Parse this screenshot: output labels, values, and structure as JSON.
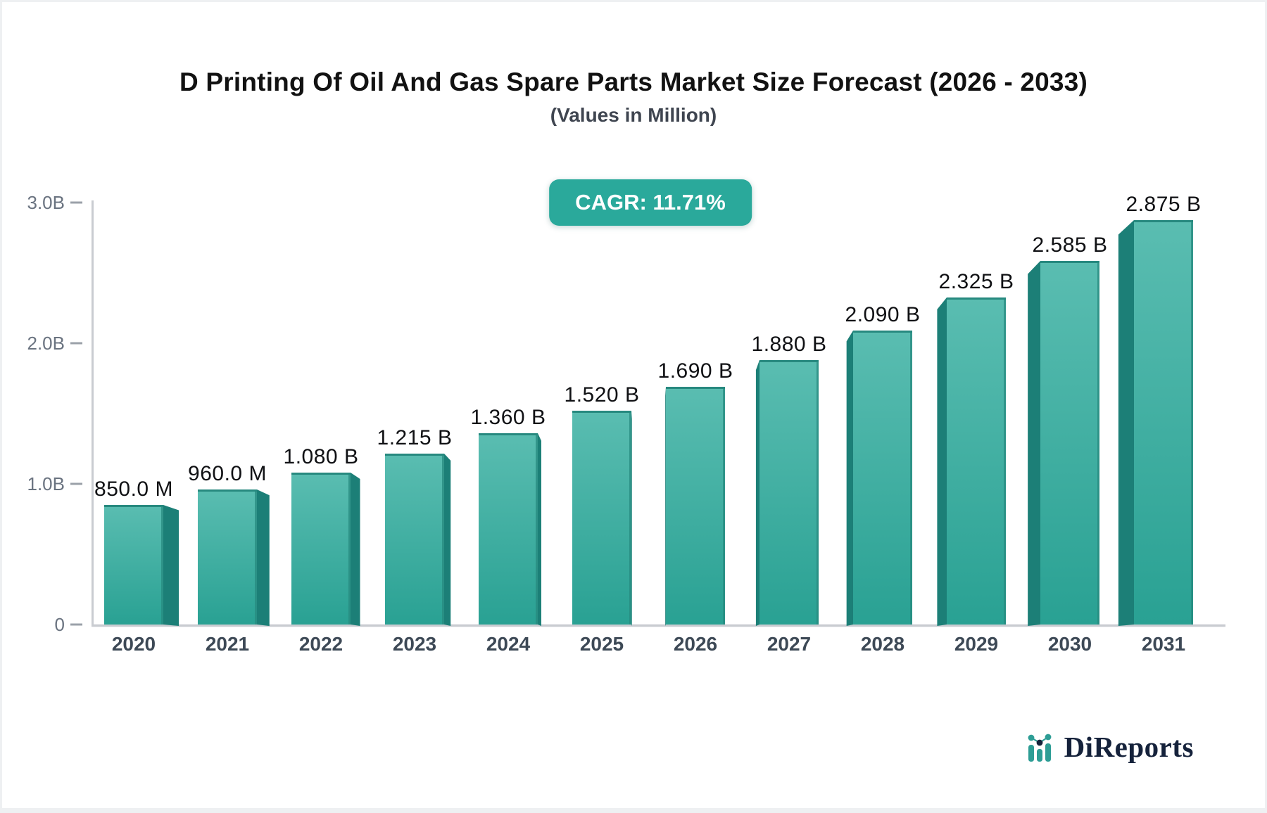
{
  "header": {
    "title": "D Printing Of Oil And Gas Spare Parts Market Size Forecast (2026 - 2033)",
    "subtitle": "(Values in Million)"
  },
  "badge": {
    "label": "CAGR: 11.71%"
  },
  "chart_data": {
    "type": "bar",
    "title": "D Printing Of Oil And Gas Spare Parts Market Size Forecast (2026 - 2033)",
    "subtitle": "(Values in Million)",
    "unit": "billions",
    "categories": [
      "2020",
      "2021",
      "2022",
      "2023",
      "2024",
      "2025",
      "2026",
      "2027",
      "2028",
      "2029",
      "2030",
      "2031"
    ],
    "values": [
      0.85,
      0.96,
      1.08,
      1.215,
      1.36,
      1.52,
      1.69,
      1.88,
      2.09,
      2.325,
      2.585,
      2.875
    ],
    "value_labels": [
      "850.0 M",
      "960.0 M",
      "1.080 B",
      "1.215 B",
      "1.360 B",
      "1.520 B",
      "1.690 B",
      "1.880 B",
      "2.090 B",
      "2.325 B",
      "2.585 B",
      "2.875 B"
    ],
    "y_ticks": [
      {
        "label": "3.0B",
        "value": 3.0
      },
      {
        "label": "2.0B",
        "value": 2.0
      },
      {
        "label": "1.0B",
        "value": 1.0
      },
      {
        "label": "0",
        "value": 0.0
      }
    ],
    "ylim": [
      0,
      3.0
    ],
    "grid": false,
    "legend": "none",
    "bar_style": "3d-perspective"
  },
  "colors": {
    "accent_teal": "#2AA99B",
    "bar_front_top": "#5ABDB1",
    "bar_front_bottom": "#29A193",
    "bar_side": "#1C7F77",
    "bar_edge": "#27897F",
    "axis_line": "#C9CCD1",
    "tick_dash": "#9BA1A9",
    "y_label": "#6A7380",
    "x_label": "#3D4956",
    "value_label": "#101114",
    "logo_navy": "#15223B",
    "logo_teal": "#2D9D95"
  },
  "logo": {
    "text": "DiReports",
    "icon": "mini-bar-chart-with-trend-dots"
  }
}
